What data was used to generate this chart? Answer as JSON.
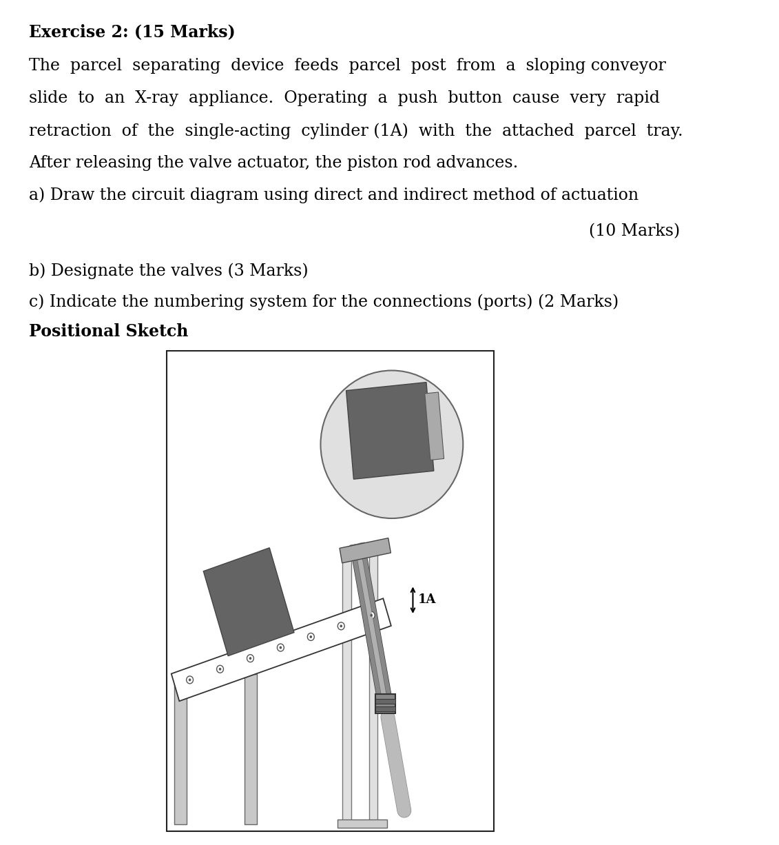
{
  "title": "Exercise 2: (15 Marks)",
  "line1": "The  parcel  separating  device  feeds  parcel  post  from  a  sloping conveyor",
  "line2": "slide  to  an  X-ray  appliance.  Operating  a  push  button  cause  very  rapid",
  "line3": "retraction  of  the  single-acting  cylinder (1A)  with  the  attached  parcel  tray.",
  "line4": "After releasing the valve actuator, the piston rod advances.",
  "line5": "a) Draw the circuit diagram using direct and indirect method of actuation",
  "line6": "(10 Marks)",
  "line7": "b) Designate the valves (3 Marks)",
  "line8": "c) Indicate the numbering system for the connections (ports) (2 Marks)",
  "line9": "Positional Sketch",
  "label_1A": "1A",
  "bg_color": "#ffffff",
  "text_color": "#000000",
  "gray_dark": "#646464",
  "gray_med": "#969696",
  "gray_light": "#c8c8c8",
  "gray_ellipse": "#e0e0e0",
  "box_edge": "#333333",
  "fs_title": 17,
  "fs_body": 17,
  "fs_label": 13
}
